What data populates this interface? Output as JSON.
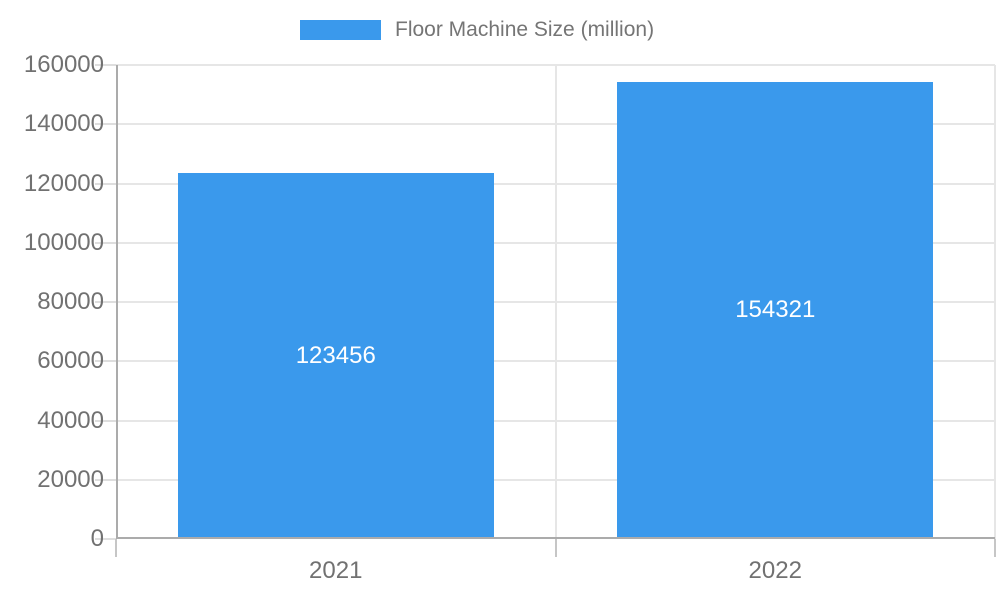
{
  "chart_data": {
    "type": "bar",
    "title": "Floor Machine Size (million)",
    "legend": {
      "label": "Floor Machine Size (million)",
      "position": "top"
    },
    "categories": [
      "2021",
      "2022"
    ],
    "series": [
      {
        "name": "Floor Machine Size (million)",
        "values": [
          123456,
          154321
        ]
      }
    ],
    "bar_value_labels": [
      "123456",
      "154321"
    ],
    "xlabel": "",
    "ylabel": "",
    "ylim": [
      0,
      160000
    ],
    "ytick_step": 20000,
    "ytick_labels": [
      "0",
      "20000",
      "40000",
      "60000",
      "80000",
      "100000",
      "120000",
      "140000",
      "160000"
    ],
    "grid": true
  },
  "colors": {
    "bar": "#3a99ec",
    "axis_line": "#ababab",
    "gridline": "#e6e6e6",
    "tick": "#dedede",
    "minor_tick": "#c6c6c6",
    "axis_label": "#717171",
    "legend_text": "#757575",
    "bar_label": "#ffffff",
    "background": "#ffffff"
  }
}
